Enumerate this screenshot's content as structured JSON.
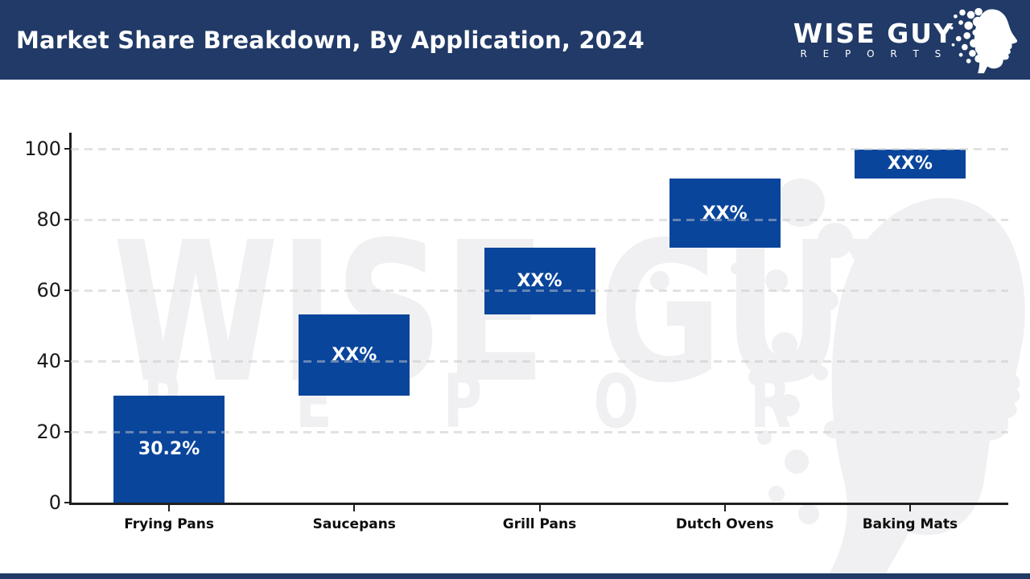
{
  "header": {
    "title": "Market Share Breakdown, By Application, 2024",
    "logo": {
      "wordmark": "WISE GUY",
      "subtitle": "R E P O R T S"
    }
  },
  "watermark": {
    "line1": "WISE GUY",
    "line2": "R E P O R T S"
  },
  "chart_data": {
    "type": "bar",
    "subtype": "waterfall",
    "title": "Market Share Breakdown, By Application, 2024",
    "categories": [
      "Frying Pans",
      "Saucepans",
      "Grill Pans",
      "Dutch Ovens",
      "Baking Mats"
    ],
    "segments": [
      {
        "category": "Frying Pans",
        "start": 0,
        "end": 30.2,
        "label": "30.2%"
      },
      {
        "category": "Saucepans",
        "start": 30.2,
        "end": 53.2,
        "label": "XX%"
      },
      {
        "category": "Grill Pans",
        "start": 53.2,
        "end": 72.0,
        "label": "XX%"
      },
      {
        "category": "Dutch Ovens",
        "start": 72.0,
        "end": 91.6,
        "label": "XX%"
      },
      {
        "category": "Baking Mats",
        "start": 91.6,
        "end": 99.8,
        "label": "XX%"
      }
    ],
    "xlabel": "",
    "ylabel": "",
    "yticks": [
      0,
      20,
      40,
      60,
      80,
      100
    ],
    "ylim": [
      0,
      105
    ],
    "grid": "horizontal-dashed",
    "legend": "none"
  },
  "colors": {
    "header_bg": "#213a67",
    "footer_bg": "#213a67",
    "bar": "#0a459c",
    "bar_label": "#ffffff",
    "watermark": "#f0f0f2",
    "axis": "#1f1f1f",
    "tick_text": "#1a1a1a",
    "title_text": "#ffffff"
  }
}
